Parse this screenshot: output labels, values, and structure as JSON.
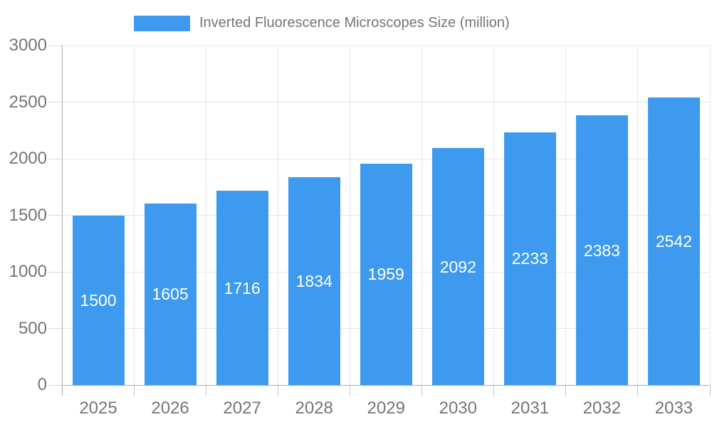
{
  "legend": {
    "label": "Inverted Fluorescence Microscopes Size (million)"
  },
  "chart_data": {
    "type": "bar",
    "title": "Inverted Fluorescence Microscopes Size (million)",
    "categories": [
      "2025",
      "2026",
      "2027",
      "2028",
      "2029",
      "2030",
      "2031",
      "2032",
      "2033"
    ],
    "values": [
      1500,
      1605,
      1716,
      1834,
      1959,
      2092,
      2233,
      2383,
      2542
    ],
    "series_name": "Inverted Fluorescence Microscopes Size (million)",
    "xlabel": "",
    "ylabel": "",
    "ylim": [
      0,
      3000
    ],
    "yticks": [
      0,
      500,
      1000,
      1500,
      2000,
      2500,
      3000
    ],
    "grid": true,
    "legend_position": "top",
    "value_labels": "inside-center"
  },
  "colors": {
    "bar": "#3D9AEF",
    "grid": "#e7e7e7",
    "axis": "#ababab",
    "y_tick": "#d8d8d8",
    "x_tick": "#c6c6c6",
    "tick_text": "#757575",
    "value_text": "#ffffff"
  }
}
